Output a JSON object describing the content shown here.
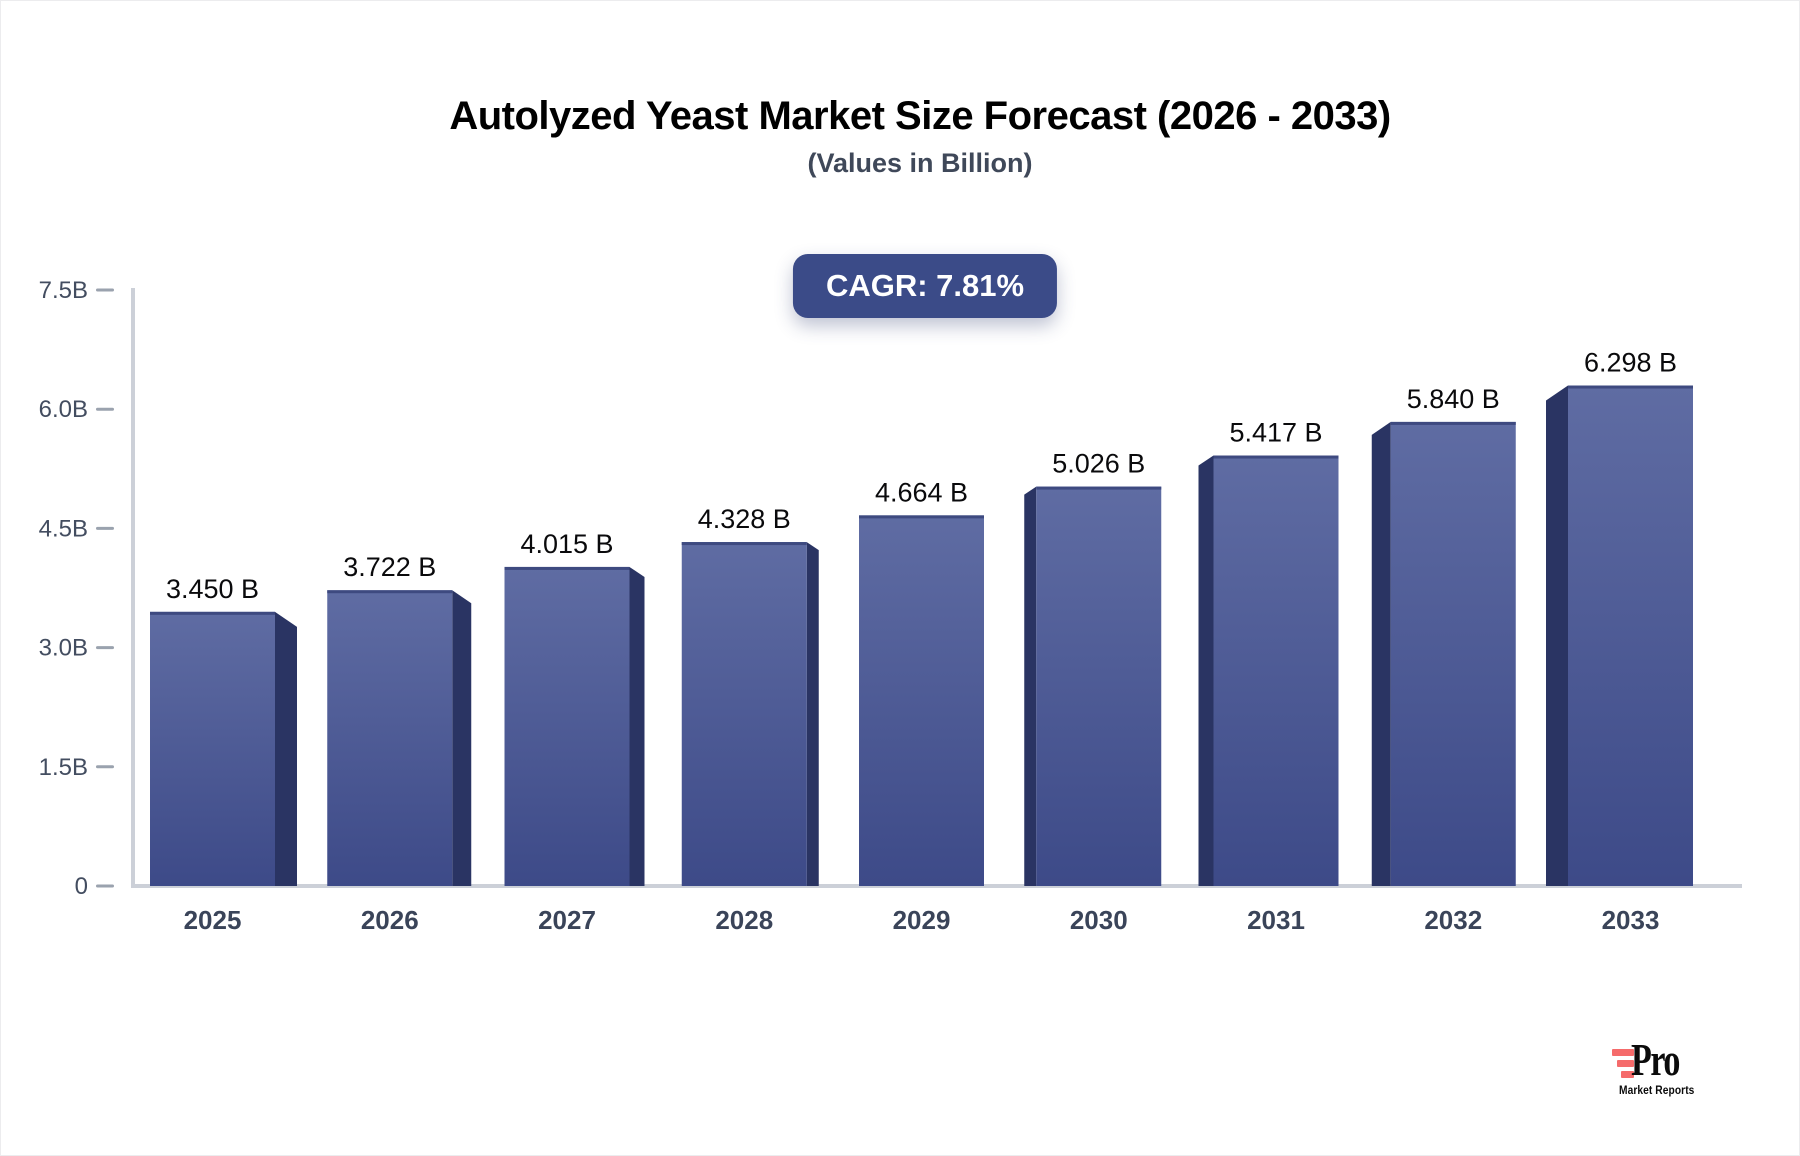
{
  "header": {
    "title": "Autolyzed Yeast Market Size Forecast (2026 - 2033)",
    "subtitle": "(Values in Billion)",
    "cagr_label": "CAGR: 7.81%"
  },
  "chart_data": {
    "type": "bar",
    "title": "Autolyzed Yeast Market Size Forecast (2026 - 2033)",
    "subtitle": "(Values in Billion)",
    "annotation": "CAGR: 7.81%",
    "categories": [
      "2025",
      "2026",
      "2027",
      "2028",
      "2029",
      "2030",
      "2031",
      "2032",
      "2033"
    ],
    "values": [
      3.45,
      3.722,
      4.015,
      4.328,
      4.664,
      5.026,
      5.417,
      5.84,
      6.298
    ],
    "value_labels": [
      "3.450 B",
      "3.722 B",
      "4.015 B",
      "4.328 B",
      "4.664 B",
      "5.026 B",
      "5.417 B",
      "5.840 B",
      "6.298 B"
    ],
    "xlabel": "",
    "ylabel": "",
    "ylim": [
      0,
      7.5
    ],
    "yticks": {
      "values": [
        0,
        1.5,
        3.0,
        4.5,
        6.0,
        7.5
      ],
      "labels": [
        "0",
        "1.5B",
        "3.0B",
        "4.5B",
        "6.0B",
        "7.5B"
      ]
    },
    "grid": false,
    "legend": false,
    "bar_style": "3d-perspective-center-vanishing",
    "colors": {
      "bar_face_top": "#5f6ca3",
      "bar_face_bottom": "#3d4a88",
      "bar_side": "#2a3463",
      "bar_top_edge": "#3e4a80",
      "axis_line": "#ccd0d8",
      "tick_dash": "#9aa2ae",
      "ytick_label": "#434d60",
      "xtick_label": "#3a4459",
      "value_label": "#0a0a0c",
      "value_label_halo": "#ffffff"
    }
  },
  "logo": {
    "name": "Pro",
    "tagline": "Market Reports",
    "accent": "#f56b6b"
  }
}
